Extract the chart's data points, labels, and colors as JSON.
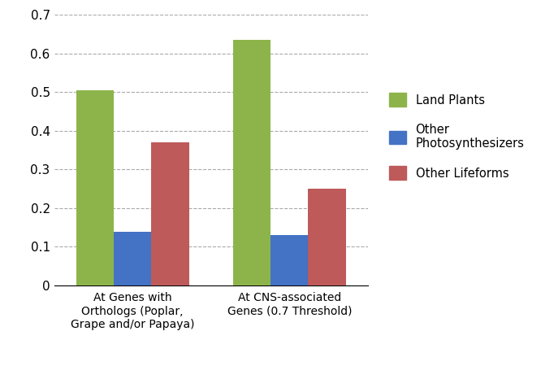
{
  "categories": [
    "At Genes with\nOrthologs (Poplar,\nGrape and/or Papaya)",
    "At CNS-associated\nGenes (0.7 Threshold)"
  ],
  "series": {
    "Land Plants": [
      0.505,
      0.635
    ],
    "Other Photosynthesizers": [
      0.138,
      0.13
    ],
    "Other Lifeforms": [
      0.37,
      0.25
    ]
  },
  "colors": {
    "Land Plants": "#8DB44A",
    "Other Photosynthesizers": "#4472C4",
    "Other Lifeforms": "#BE5A5A"
  },
  "ylim": [
    0,
    0.7
  ],
  "yticks": [
    0,
    0.1,
    0.2,
    0.3,
    0.4,
    0.5,
    0.6,
    0.7
  ],
  "legend_labels": [
    "Land Plants",
    "Other\nPhotosynthesizers",
    "Other Lifeforms"
  ],
  "background_color": "#ffffff",
  "grid_color": "#aaaaaa",
  "bar_width": 0.12,
  "group_centers": [
    0.25,
    0.75
  ]
}
